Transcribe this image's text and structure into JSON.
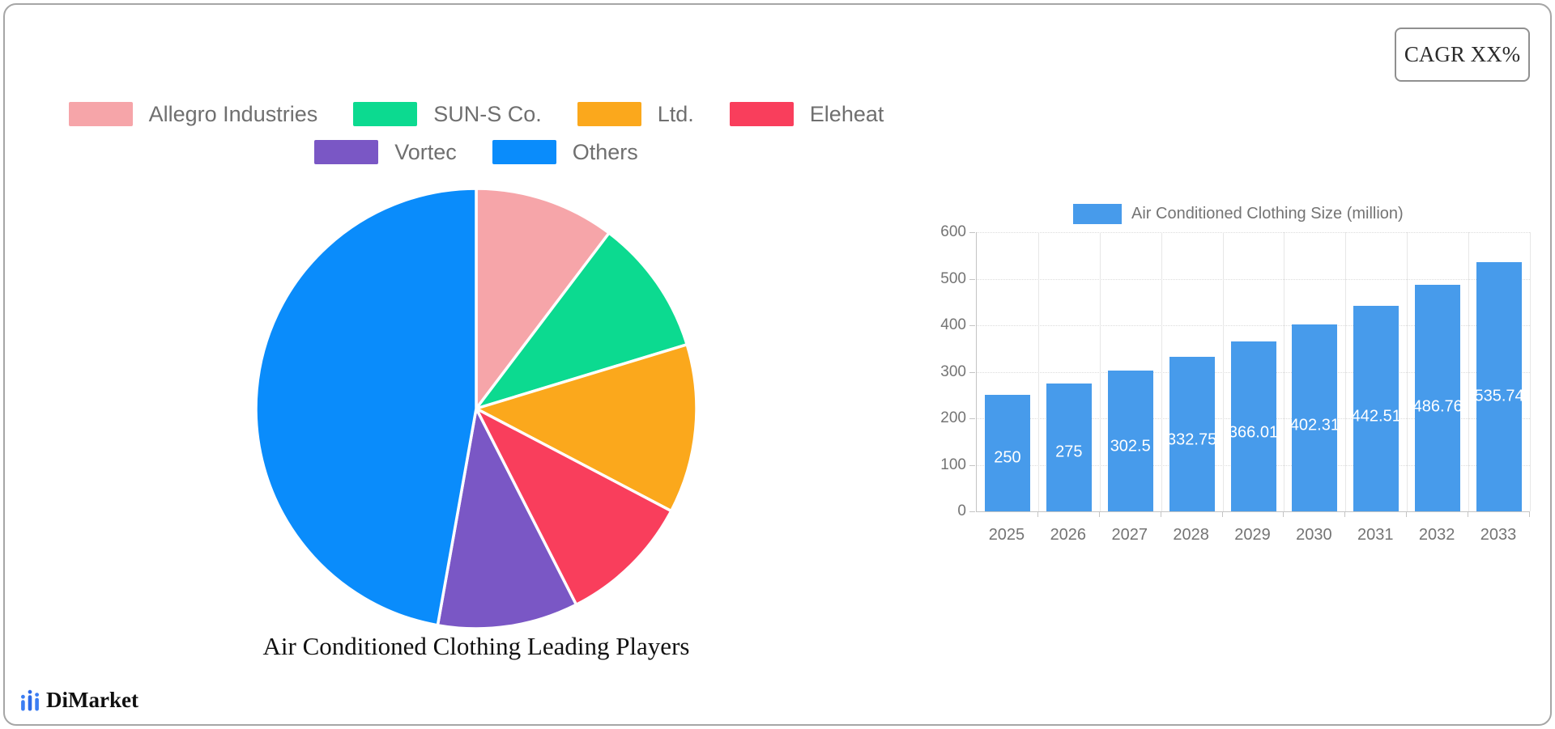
{
  "header": {
    "cagr_label": "CAGR XX%"
  },
  "branding": {
    "name": "DiMarket",
    "icon": "bar-chart-logo-icon",
    "icon_color": "#3c7ef3"
  },
  "chart_data": [
    {
      "type": "pie",
      "title": "Air Conditioned Clothing Leading Players",
      "labels": [
        "Allegro Industries",
        "SUN-S Co.",
        "Ltd.",
        "Eleheat",
        "Vortec",
        "Others"
      ],
      "values": [
        10.3,
        10.0,
        12.4,
        9.8,
        10.3,
        47.2
      ],
      "unit": "percent",
      "colors": [
        "#F6A5A9",
        "#0CDA90",
        "#FBA81C",
        "#F93E5C",
        "#7A57C5",
        "#0A8CFB"
      ],
      "start_angle": "top",
      "direction": "clockwise",
      "slice_gap_color": "#ffffff",
      "legend_position": "top",
      "legend_rows": [
        4,
        2
      ],
      "legend_text_color": "#6f6f6f"
    },
    {
      "type": "bar",
      "categories": [
        "2025",
        "2026",
        "2027",
        "2028",
        "2029",
        "2030",
        "2031",
        "2032",
        "2033"
      ],
      "series": [
        {
          "name": "Air Conditioned Clothing Size (million)",
          "values": [
            250,
            275,
            302.5,
            332.75,
            366.01,
            402.31,
            442.51,
            486.76,
            535.74
          ]
        }
      ],
      "value_labels": [
        "250",
        "275",
        "302.5",
        "332.75",
        "366.01",
        "402.31",
        "442.51",
        "486.76",
        "535.74"
      ],
      "bar_color": "#479BEB",
      "value_label_color": "#ffffff",
      "ylim": [
        0,
        600
      ],
      "yticks": [
        0,
        100,
        200,
        300,
        400,
        500,
        600
      ],
      "grid": true,
      "legend_position": "top",
      "axis_text_color": "#747474"
    }
  ]
}
